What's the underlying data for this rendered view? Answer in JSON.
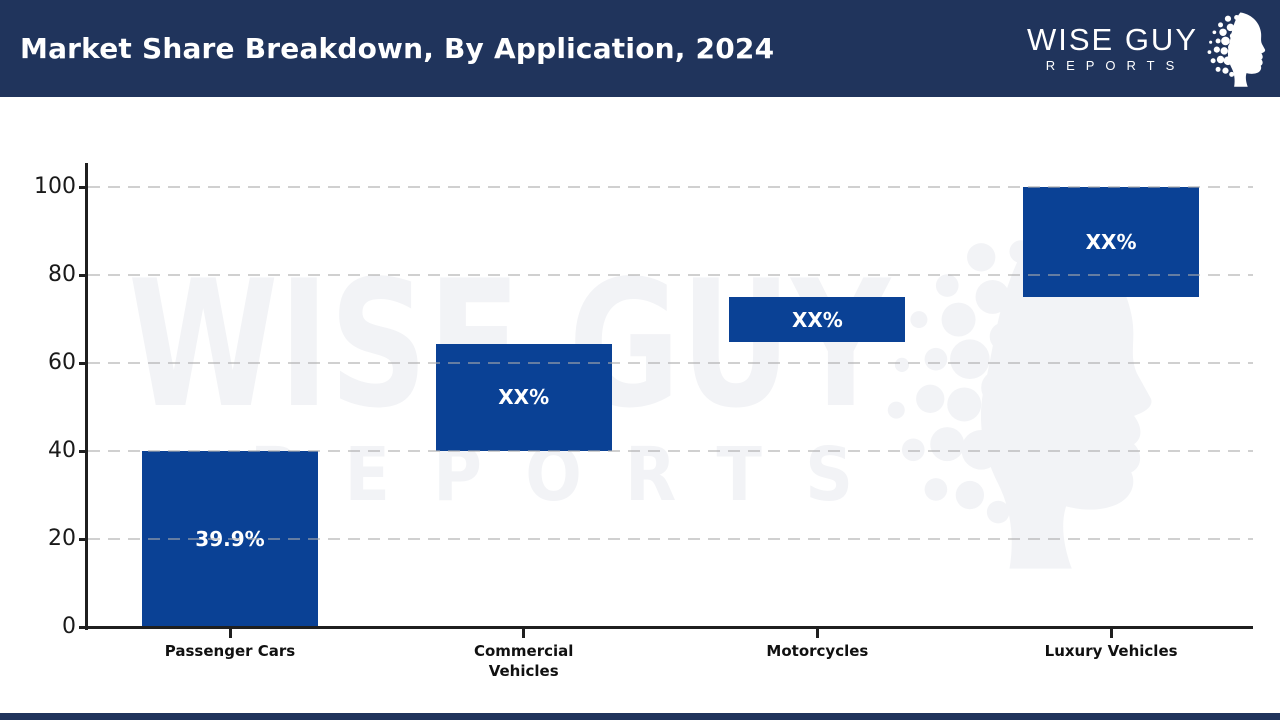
{
  "header": {
    "title": "Market Share Breakdown, By Application, 2024",
    "logo": {
      "word": "WISE GUY",
      "sub": "REPORTS"
    }
  },
  "watermark": {
    "word": "WISE GUY",
    "sub": "REPORTS"
  },
  "colors": {
    "header_bg": "#20345C",
    "bar": "#0A4195",
    "grid": "#ABABAB",
    "axis": "#1F1F1F",
    "watermark": "#F2F3F6",
    "bar_label_text": "#FFFFFF",
    "tick_text": "#1A1A1A"
  },
  "chart_data": {
    "type": "bar",
    "subtype": "floating-waterfall",
    "title": "Market Share Breakdown, By Application, 2024",
    "categories": [
      "Passenger Cars",
      "Commercial\nVehicles",
      "Motorcycles",
      "Luxury Vehicles"
    ],
    "ranges": [
      [
        0,
        39.9
      ],
      [
        40,
        64.4
      ],
      [
        64.7,
        74.9
      ],
      [
        75,
        100
      ]
    ],
    "values": [
      39.9,
      24.4,
      10.2,
      25.0
    ],
    "bar_labels": [
      "39.9%",
      "XX%",
      "XX%",
      "XX%"
    ],
    "xlabel": "",
    "ylabel": "",
    "ylim": [
      0,
      105.5
    ],
    "yticks": [
      0,
      20,
      40,
      60,
      80,
      100
    ],
    "grid": "horizontal-dashed",
    "legend": "none"
  }
}
